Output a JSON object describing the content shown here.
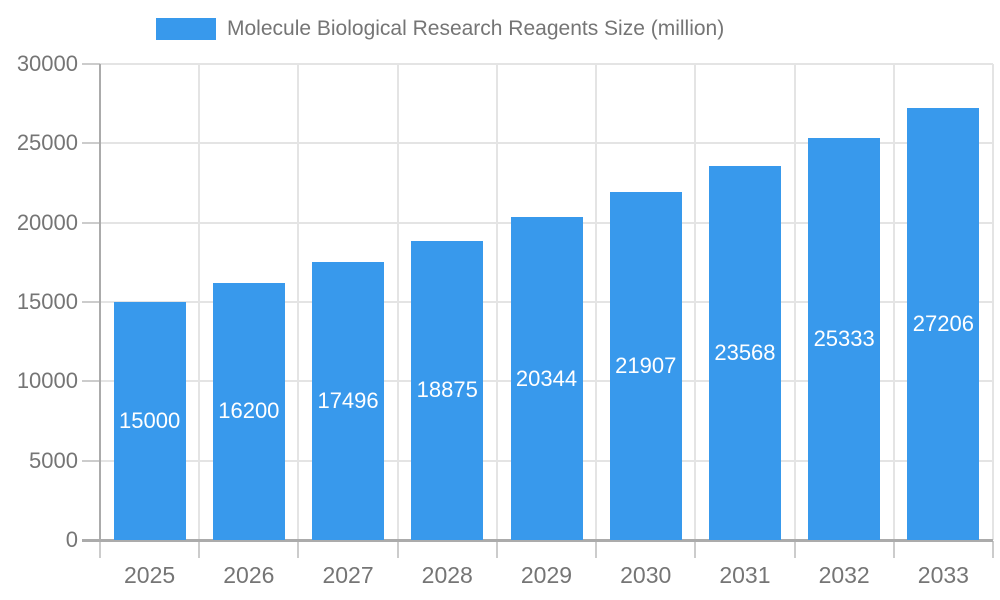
{
  "chart_data": {
    "type": "bar",
    "title": "",
    "legend": {
      "label": "Molecule Biological Research Reagents Size (million)",
      "position": "top"
    },
    "categories": [
      "2025",
      "2026",
      "2027",
      "2028",
      "2029",
      "2030",
      "2031",
      "2032",
      "2033"
    ],
    "series": [
      {
        "name": "Molecule Biological Research Reagents Size (million)",
        "values": [
          15000,
          16200,
          17496,
          18875,
          20344,
          21907,
          23568,
          25333,
          27206
        ]
      }
    ],
    "xlabel": "",
    "ylabel": "",
    "ylim": [
      0,
      30000
    ],
    "ytick_step": 5000,
    "yticks": [
      "0",
      "5000",
      "10000",
      "15000",
      "20000",
      "25000",
      "30000"
    ],
    "grid": true,
    "value_label_position": "inside-middle",
    "colors": {
      "bar": "#3899ec",
      "value_label": "#ffffff",
      "axis_text": "#757575",
      "grid_line": "#e4e4e4",
      "axis_line": "#ababab",
      "tick": "#cccccc",
      "background": "#ffffff"
    }
  }
}
